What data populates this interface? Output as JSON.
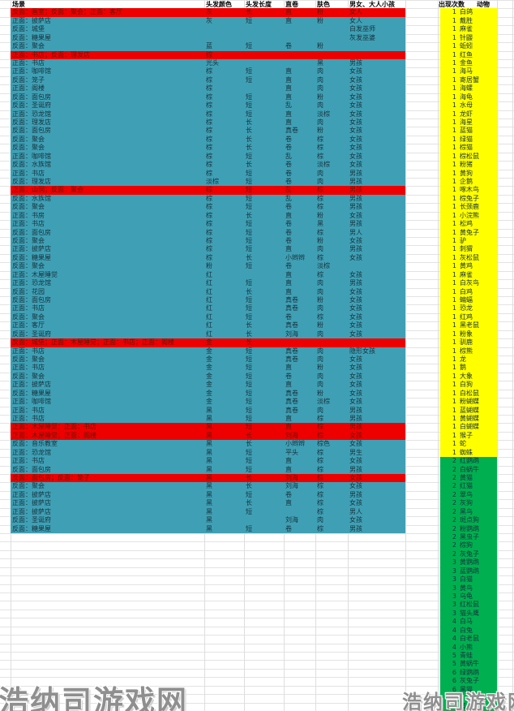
{
  "sheet": {
    "headers": {
      "scene": "场景",
      "hair_color": "头发颜色",
      "hair_length": "头发长度",
      "curl": "直卷",
      "skin": "肤色",
      "person": "男女、大人小孩",
      "count": "出现次数",
      "animal": "动物"
    },
    "colors": {
      "teal": "#3fa0b5",
      "red": "#ee0000",
      "yellow": "#ffff00",
      "green": "#00b050",
      "grid": "#e3e3e3"
    },
    "left_rows": [
      [
        "反面：画室；反面：聚会；正面：客厅",
        "灰",
        "长",
        "直",
        "粉",
        "女人",
        1
      ],
      [
        "正面：披萨店",
        "灰",
        "短",
        "直",
        "粉",
        "女人",
        0
      ],
      [
        "反面：城堡",
        "",
        "",
        "",
        "",
        "白发巫师",
        0
      ],
      [
        "反面：糖果屋",
        "",
        "",
        "",
        "",
        "灰发巫婆",
        0
      ],
      [
        "反面：聚会",
        "蓝",
        "短",
        "卷",
        "粉",
        "",
        0
      ],
      [
        "正面：书店；反面：理发店",
        "棕",
        "",
        "",
        "",
        "",
        1
      ],
      [
        "正面：书店",
        "光头",
        "",
        "",
        "黑",
        "男孩",
        0
      ],
      [
        "正面：咖啡馆",
        "棕",
        "短",
        "直",
        "肉",
        "女孩",
        0
      ],
      [
        "反面：笼子",
        "棕",
        "短",
        "直",
        "肉",
        "女孩",
        0
      ],
      [
        "正面：阁楼",
        "棕",
        "",
        "直",
        "肉",
        "女孩",
        0
      ],
      [
        "反面：面包房",
        "棕",
        "短",
        "直",
        "粉",
        "女孩",
        0
      ],
      [
        "反面：圣诞府",
        "棕",
        "短",
        "乱",
        "肉",
        "女孩",
        0
      ],
      [
        "正面：恐龙馆",
        "棕",
        "短",
        "直",
        "淡棕",
        "女孩",
        0
      ],
      [
        "反面：理发店",
        "棕",
        "长",
        "直",
        "肉",
        "女孩",
        0
      ],
      [
        "反面：面包房",
        "棕",
        "长",
        "真卷",
        "粉",
        "女孩",
        0
      ],
      [
        "反面：聚会",
        "棕",
        "长",
        "卷",
        "棕",
        "女孩",
        0
      ],
      [
        "反面：聚会",
        "棕",
        "长",
        "卷",
        "棕",
        "女孩",
        0
      ],
      [
        "正面：咖啡馆",
        "棕",
        "短",
        "乱",
        "棕",
        "女孩",
        0
      ],
      [
        "反面：水族馆",
        "棕",
        "长",
        "卷",
        "淡棕",
        "女孩",
        0
      ],
      [
        "正面：书店",
        "棕",
        "短",
        "卷",
        "肉",
        "男孩",
        0
      ],
      [
        "反面：理发店",
        "淡棕",
        "短",
        "卷",
        "肉",
        "男孩",
        0
      ],
      [
        "正面：山洞；反面：聚会",
        "棕",
        "短",
        "乱",
        "棕",
        "男孩",
        1
      ],
      [
        "反面：水族馆",
        "棕",
        "短",
        "乱",
        "棕",
        "男孩",
        0
      ],
      [
        "反面：聚会",
        "棕",
        "短",
        "卷",
        "棕",
        "男孩",
        0
      ],
      [
        "正面：书房",
        "棕",
        "长",
        "直",
        "粉",
        "女孩",
        0
      ],
      [
        "正面：书店",
        "棕",
        "短",
        "卷",
        "黑",
        "男孩",
        0
      ],
      [
        "反面：面包房",
        "棕",
        "短",
        "卷",
        "棕",
        "男人",
        0
      ],
      [
        "反面：聚会",
        "棕",
        "短",
        "卷",
        "粉",
        "女孩",
        0
      ],
      [
        "正面：披萨店",
        "棕",
        "短",
        "直",
        "肉",
        "男孩",
        0
      ],
      [
        "反面：糖果屋",
        "棕",
        "长",
        "小辫辫",
        "棕",
        "女孩",
        0
      ],
      [
        "反面：聚会",
        "粉",
        "短",
        "卷",
        "淡棕",
        "",
        0
      ],
      [
        "正面：木屋睡觉",
        "红",
        "",
        "直",
        "棕",
        "女孩",
        0
      ],
      [
        "正面：恐龙馆",
        "红",
        "短",
        "直",
        "肉",
        "男孩",
        0
      ],
      [
        "反面：花园",
        "红",
        "长",
        "直",
        "肉",
        "女孩",
        0
      ],
      [
        "反面：面包房",
        "红",
        "短",
        "真卷",
        "粉",
        "女孩",
        0
      ],
      [
        "正面：书店",
        "红",
        "短",
        "真卷",
        "肉",
        "女孩",
        0
      ],
      [
        "反面：聚会",
        "红",
        "短",
        "卷",
        "棕",
        "女孩",
        0
      ],
      [
        "正面：客厅",
        "红",
        "长",
        "真卷",
        "粉",
        "女孩",
        0
      ],
      [
        "反面：圣诞府",
        "红",
        "长",
        "刘海",
        "肉",
        "女孩",
        0
      ],
      [
        "反面：城堡；正面：木屋睡觉；正面：书店；正面：阁楼",
        "金",
        "长",
        "",
        "",
        "",
        1
      ],
      [
        "正面：书店",
        "金",
        "短",
        "真卷",
        "肉",
        "隐形女孩",
        0
      ],
      [
        "反面：聚会",
        "金",
        "短",
        "真卷",
        "肉",
        "女孩",
        0
      ],
      [
        "正面：书店",
        "金",
        "短",
        "直",
        "粉",
        "女孩",
        0
      ],
      [
        "反面：聚会",
        "金",
        "短",
        "卷",
        "肉",
        "女孩",
        0
      ],
      [
        "正面：披萨店",
        "金",
        "短",
        "直",
        "肉",
        "女孩",
        0
      ],
      [
        "反面：糖果屋",
        "金",
        "短",
        "真卷",
        "粉",
        "女孩",
        0
      ],
      [
        "正面：咖啡馆",
        "金",
        "短",
        "真卷",
        "淡棕",
        "女孩",
        0
      ],
      [
        "正面：书店",
        "黑",
        "短",
        "真卷",
        "肉",
        "男孩",
        0
      ],
      [
        "正面：书店",
        "黑",
        "短",
        "直",
        "棕",
        "男孩",
        0
      ],
      [
        "正面：木屋睡觉；正面：书店",
        "黑",
        "短",
        "直",
        "棕",
        "男孩",
        1
      ],
      [
        "正面：木屋睡觉；正面：阁楼",
        "黑",
        "长",
        "刘海",
        "棕",
        "女孩",
        1
      ],
      [
        "反面：音乐教室",
        "黑",
        "长",
        "小辫辫",
        "棕色",
        "女孩",
        0
      ],
      [
        "正面：恐龙馆",
        "黑",
        "短",
        "平头",
        "棕",
        "男生",
        0
      ],
      [
        "正面：书店",
        "黑",
        "短",
        "直",
        "棕",
        "女孩",
        0
      ],
      [
        "反面：面包房",
        "黑",
        "短",
        "直",
        "棕",
        "男孩",
        0
      ],
      [
        "反面：面包房；反面：笼子",
        "黑",
        "长",
        "刘海",
        "棕",
        "女孩",
        1
      ],
      [
        "反面：聚会",
        "黑",
        "长",
        "刘海",
        "棕",
        "女孩",
        0
      ],
      [
        "正面：披萨店",
        "黑",
        "短",
        "卷",
        "棕",
        "男孩",
        0
      ],
      [
        "正面：披萨店",
        "黑",
        "长",
        "直",
        "棕",
        "女孩",
        0
      ],
      [
        "正面：披萨店",
        "黑",
        "短",
        "",
        "棕",
        "男人",
        0
      ],
      [
        "反面：圣诞府",
        "黑",
        "",
        "刘海",
        "肉",
        "女孩",
        0
      ],
      [
        "反面：糖果屋",
        "黑",
        "短",
        "卷",
        "棕",
        "男孩",
        0
      ]
    ],
    "yellow_rows": [
      [
        "1",
        "白鸽"
      ],
      [
        "1",
        "戴胜"
      ],
      [
        "1",
        "麻雀"
      ],
      [
        "1",
        "针鼹"
      ],
      [
        "1",
        "蚯蚓"
      ],
      [
        "1",
        "红鱼"
      ],
      [
        "1",
        "金鱼"
      ],
      [
        "1",
        "海马"
      ],
      [
        "1",
        "寄居蟹"
      ],
      [
        "1",
        "海螺"
      ],
      [
        "1",
        "海龟"
      ],
      [
        "1",
        "水母"
      ],
      [
        "1",
        "龙虾"
      ],
      [
        "1",
        "海星"
      ],
      [
        "1",
        "蓝猫"
      ],
      [
        "1",
        "绿猫"
      ],
      [
        "1",
        "棕猫"
      ],
      [
        "1",
        "棕松鼠"
      ],
      [
        "1",
        "粉猪"
      ],
      [
        "1",
        "黄狗"
      ],
      [
        "1",
        "企鹅"
      ],
      [
        "1",
        "啄木鸟"
      ],
      [
        "1",
        "棕兔子"
      ],
      [
        "1",
        "长颈鹿"
      ],
      [
        "1",
        "小浣熊"
      ],
      [
        "1",
        "松鸡"
      ],
      [
        "1",
        "黄兔子"
      ],
      [
        "1",
        "驴"
      ],
      [
        "1",
        "刺猬"
      ],
      [
        "1",
        "灰松鼠"
      ],
      [
        "1",
        "黄鸡"
      ],
      [
        "1",
        "麻雀"
      ],
      [
        "1",
        "白灰鸟"
      ],
      [
        "1",
        "白鸡"
      ],
      [
        "1",
        "蝙蝠"
      ],
      [
        "1",
        "恐龙"
      ],
      [
        "1",
        "红鸡"
      ],
      [
        "1",
        "黑老鼠"
      ],
      [
        "1",
        "粉象"
      ],
      [
        "1",
        "驯鹿"
      ],
      [
        "1",
        "棕熊"
      ],
      [
        "1",
        "龙"
      ],
      [
        "1",
        "鹅"
      ],
      [
        "1",
        "大象"
      ],
      [
        "1",
        "白狗"
      ],
      [
        "1",
        "白松鼠"
      ],
      [
        "1",
        "粉蝴蝶"
      ],
      [
        "1",
        "蓝蝴蝶"
      ],
      [
        "1",
        "黄蝴蝶"
      ],
      [
        "1",
        "白蝴蝶"
      ],
      [
        "1",
        "猴子"
      ],
      [
        "1",
        "蛇"
      ],
      [
        "1",
        "蜘蛛"
      ]
    ],
    "green_rows": [
      [
        "2",
        "红鹦鹉"
      ],
      [
        "2",
        "白蜗牛"
      ],
      [
        "2",
        "黄猫"
      ],
      [
        "2",
        "红猫"
      ],
      [
        "2",
        "翠鸟"
      ],
      [
        "2",
        "灰狗"
      ],
      [
        "2",
        "黑鸟"
      ],
      [
        "2",
        "斑点狗"
      ],
      [
        "2",
        "粉鹦鹉"
      ],
      [
        "2",
        "黑虫子"
      ],
      [
        "2",
        "棕狗"
      ],
      [
        "2",
        "灰兔子"
      ],
      [
        "3",
        "黄鹦鹉"
      ],
      [
        "3",
        "蓝鹦鹉"
      ],
      [
        "3",
        "白猫"
      ],
      [
        "3",
        "黄鸟"
      ],
      [
        "3",
        "乌龟"
      ],
      [
        "3",
        "红松鼠"
      ],
      [
        "3",
        "猫头鹰"
      ],
      [
        "4",
        "白马"
      ],
      [
        "4",
        "白兔"
      ],
      [
        "4",
        "白老鼠"
      ],
      [
        "4",
        "小熊"
      ],
      [
        "5",
        "青蛙"
      ],
      [
        "5",
        "黄蜗牛"
      ],
      [
        "6",
        "绿鹦鹉"
      ],
      [
        "6",
        "灰兔子"
      ],
      [
        "6",
        "黑猫"
      ],
      [
        "",
        ""
      ],
      [
        "8",
        "蓝鸟"
      ]
    ],
    "watermark": "浩纳司游戏网"
  }
}
